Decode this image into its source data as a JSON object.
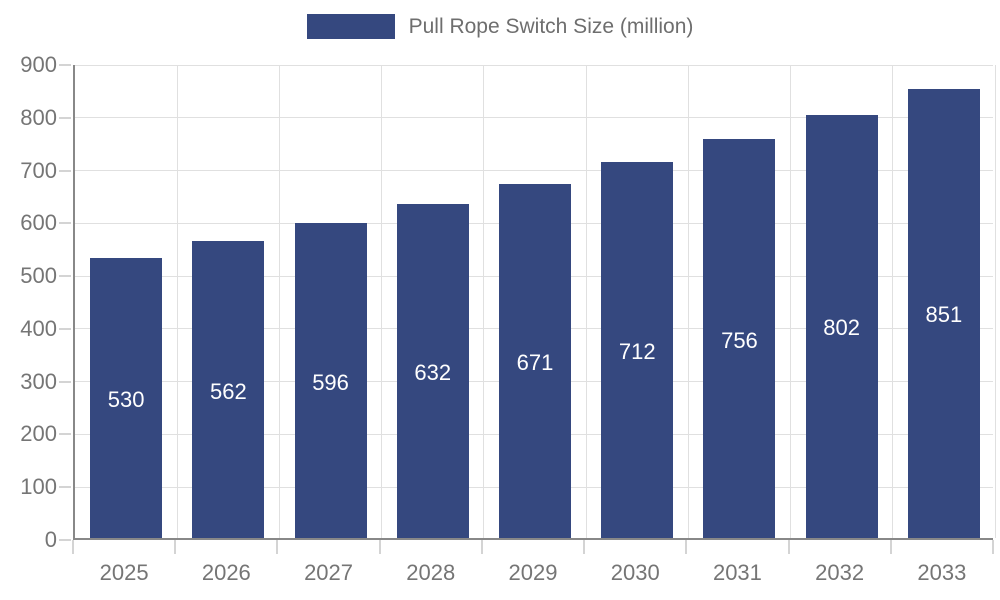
{
  "legend": {
    "label": "Pull Rope Switch Size (million)"
  },
  "colors": {
    "bar": "#35487f",
    "axis_line": "#888888",
    "gridline": "#e0e0e0",
    "tick_mark": "#d4d4d4",
    "tick_label": "#757575",
    "legend_text": "#6e6e6e",
    "value_label": "#ffffff",
    "background": "#ffffff"
  },
  "chart_data": {
    "type": "bar",
    "title": "Pull Rope Switch Size (million)",
    "categories": [
      "2025",
      "2026",
      "2027",
      "2028",
      "2029",
      "2030",
      "2031",
      "2032",
      "2033"
    ],
    "values": [
      530,
      562,
      596,
      632,
      671,
      712,
      756,
      802,
      851
    ],
    "xlabel": "",
    "ylabel": "",
    "ylim": [
      0,
      900
    ],
    "ytick_step": 100,
    "yticks": [
      0,
      100,
      200,
      300,
      400,
      500,
      600,
      700,
      800,
      900
    ],
    "grid": true,
    "legend_position": "top",
    "value_labels": "inside-middle"
  }
}
